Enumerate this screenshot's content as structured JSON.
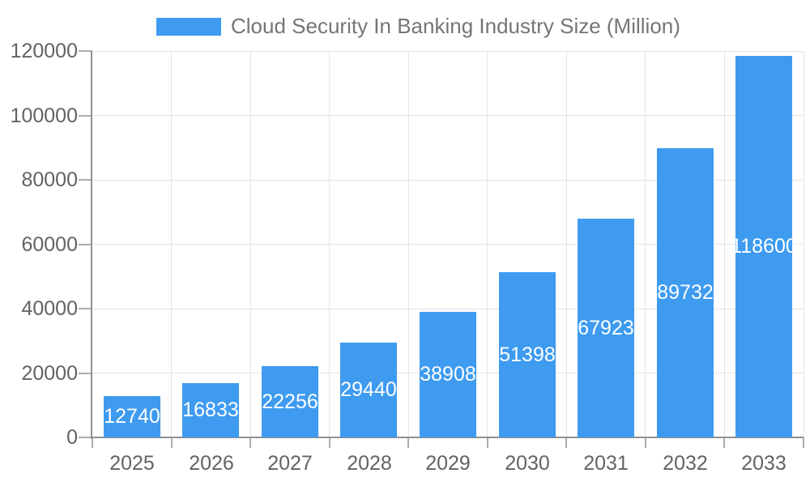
{
  "chart_data": {
    "type": "bar",
    "title": "Cloud Security In Banking Industry Size (Million)",
    "categories": [
      "2025",
      "2026",
      "2027",
      "2028",
      "2029",
      "2030",
      "2031",
      "2032",
      "2033"
    ],
    "series": [
      {
        "name": "Cloud Security In Banking Industry Size (Million)",
        "values": [
          12740,
          16833,
          22256,
          29440,
          38908,
          51398,
          67923,
          89732,
          118600
        ]
      }
    ],
    "value_labels": [
      "12740",
      "16833",
      "22256",
      "29440",
      "38908",
      "51398",
      "67923",
      "89732",
      "118600"
    ],
    "xlabel": "",
    "ylabel": "",
    "y_ticks": [
      0,
      20000,
      40000,
      60000,
      80000,
      100000,
      120000
    ],
    "y_tick_labels": [
      "0",
      "20000",
      "40000",
      "60000",
      "80000",
      "100000",
      "120000"
    ],
    "ylim": [
      0,
      120000
    ],
    "grid": "both",
    "legend_position": "top",
    "colors": {
      "bar": "#3e9bf0",
      "value_label": "#ffffff",
      "axis_line": "#919191",
      "gridline": "#e4e4e4",
      "tick_label": "#636363",
      "title_text": "#757575",
      "background": "#ffffff"
    }
  }
}
